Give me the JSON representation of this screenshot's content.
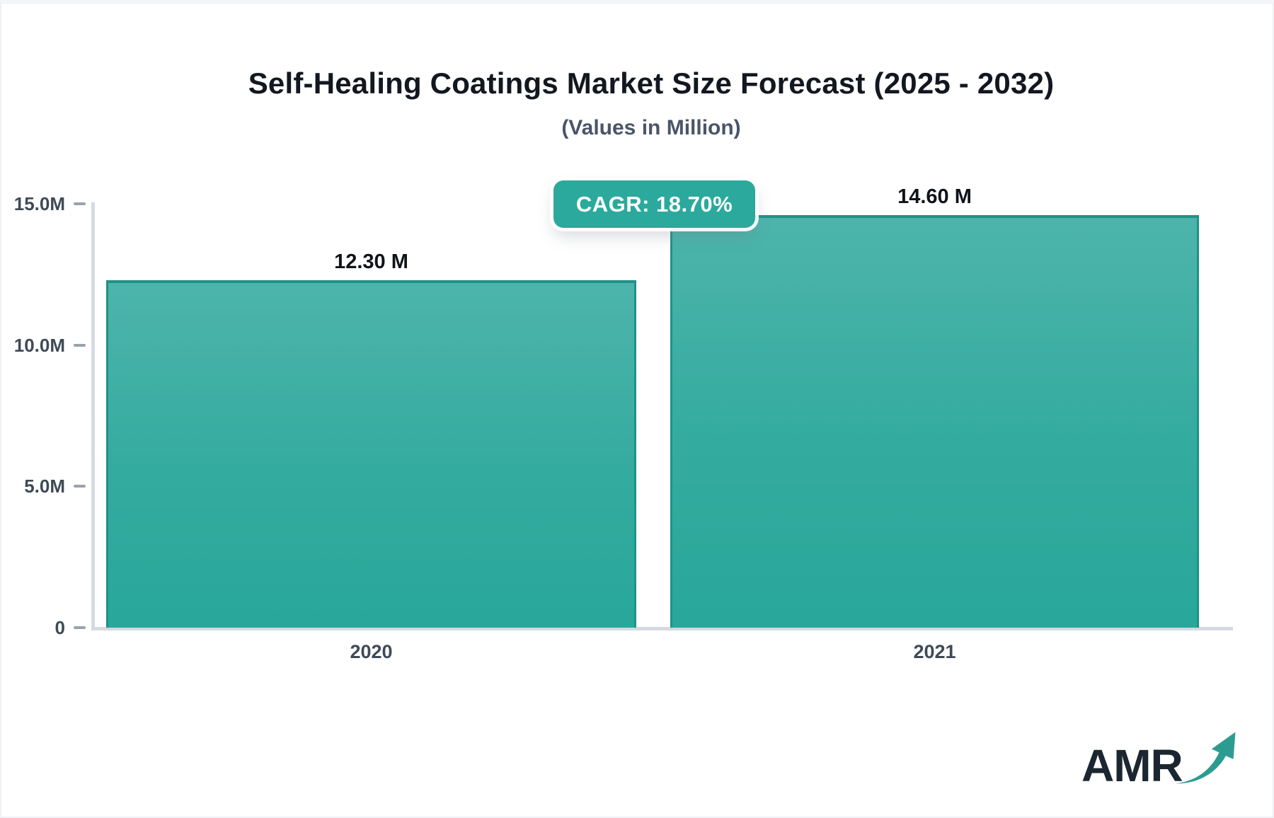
{
  "header": {
    "title": "Self-Healing Coatings Market Size Forecast (2025 - 2032)",
    "subtitle": "(Values in Million)"
  },
  "cagr_badge": {
    "label": "CAGR: 18.70%"
  },
  "chart_data": {
    "type": "bar",
    "title": "Self-Healing Coatings Market Size Forecast (2025 - 2032)",
    "subtitle": "(Values in Million)",
    "categories": [
      "2020",
      "2021"
    ],
    "values": [
      12.3,
      14.6
    ],
    "value_labels": [
      "12.30 M",
      "14.60 M"
    ],
    "unit": "Million",
    "cagr_percent": "18.70%",
    "ylim": [
      0,
      15
    ],
    "yticks": [
      {
        "value": 0,
        "label": "0"
      },
      {
        "value": 5,
        "label": "5.0M"
      },
      {
        "value": 10,
        "label": "10.0M"
      },
      {
        "value": 15,
        "label": "15.0M"
      }
    ],
    "grid": false,
    "legend_position": "none"
  },
  "logo": {
    "text": "AMR",
    "icon": "growth-arrow-icon"
  },
  "colors": {
    "title": "#131720",
    "subtitle": "#4a5568",
    "bar_gradient_top": "#4db4ab",
    "bar_gradient_bottom": "#28a79a",
    "bar_border": "#1f9287",
    "badge_bg": "#2ba99c",
    "badge_text": "#ffffff",
    "axis_line": "#d6dae0",
    "tick": "#9aa2ac",
    "tick_label": "#3f4a57",
    "logo_text": "#1c2630",
    "logo_arrow": "#2d9c90"
  }
}
